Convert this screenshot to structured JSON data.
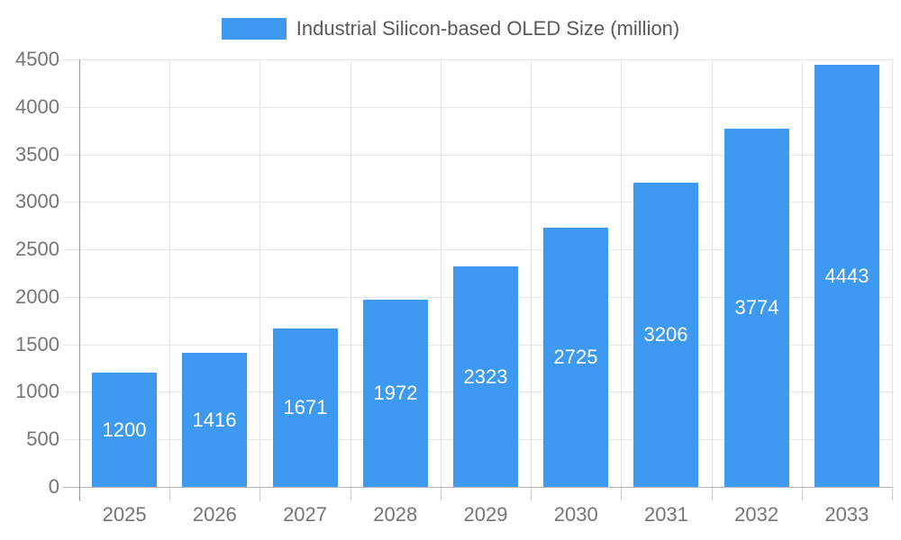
{
  "legend": {
    "label": "Industrial Silicon-based OLED Size (million)",
    "swatch_color": "#3D9AF0"
  },
  "chart_data": {
    "type": "bar",
    "title": "",
    "xlabel": "",
    "ylabel": "",
    "categories": [
      "2025",
      "2026",
      "2027",
      "2028",
      "2029",
      "2030",
      "2031",
      "2032",
      "2033"
    ],
    "values": [
      1200,
      1416,
      1671,
      1972,
      2323,
      2725,
      3206,
      3774,
      4443
    ],
    "value_labels": [
      "1200",
      "1416",
      "1671",
      "1972",
      "2323",
      "2725",
      "3206",
      "3774",
      "4443"
    ],
    "series_name": "Industrial Silicon-based OLED Size (million)",
    "ylim": [
      0,
      4500
    ],
    "ytick_step": 500,
    "ytick_labels": [
      "0",
      "500",
      "1000",
      "1500",
      "2000",
      "2500",
      "3000",
      "3500",
      "4000",
      "4500"
    ],
    "grid": true,
    "legend_position": "top-center",
    "colors": {
      "bar": "#3D9AF0",
      "gridline": "#e6e6e6",
      "y_axis_line": "#999999",
      "x_axis_line": "#b5b5b5",
      "x_tick": "#cccccc",
      "axis_label": "#757575",
      "legend_text": "#595959",
      "value_label": "#ffffff"
    }
  }
}
